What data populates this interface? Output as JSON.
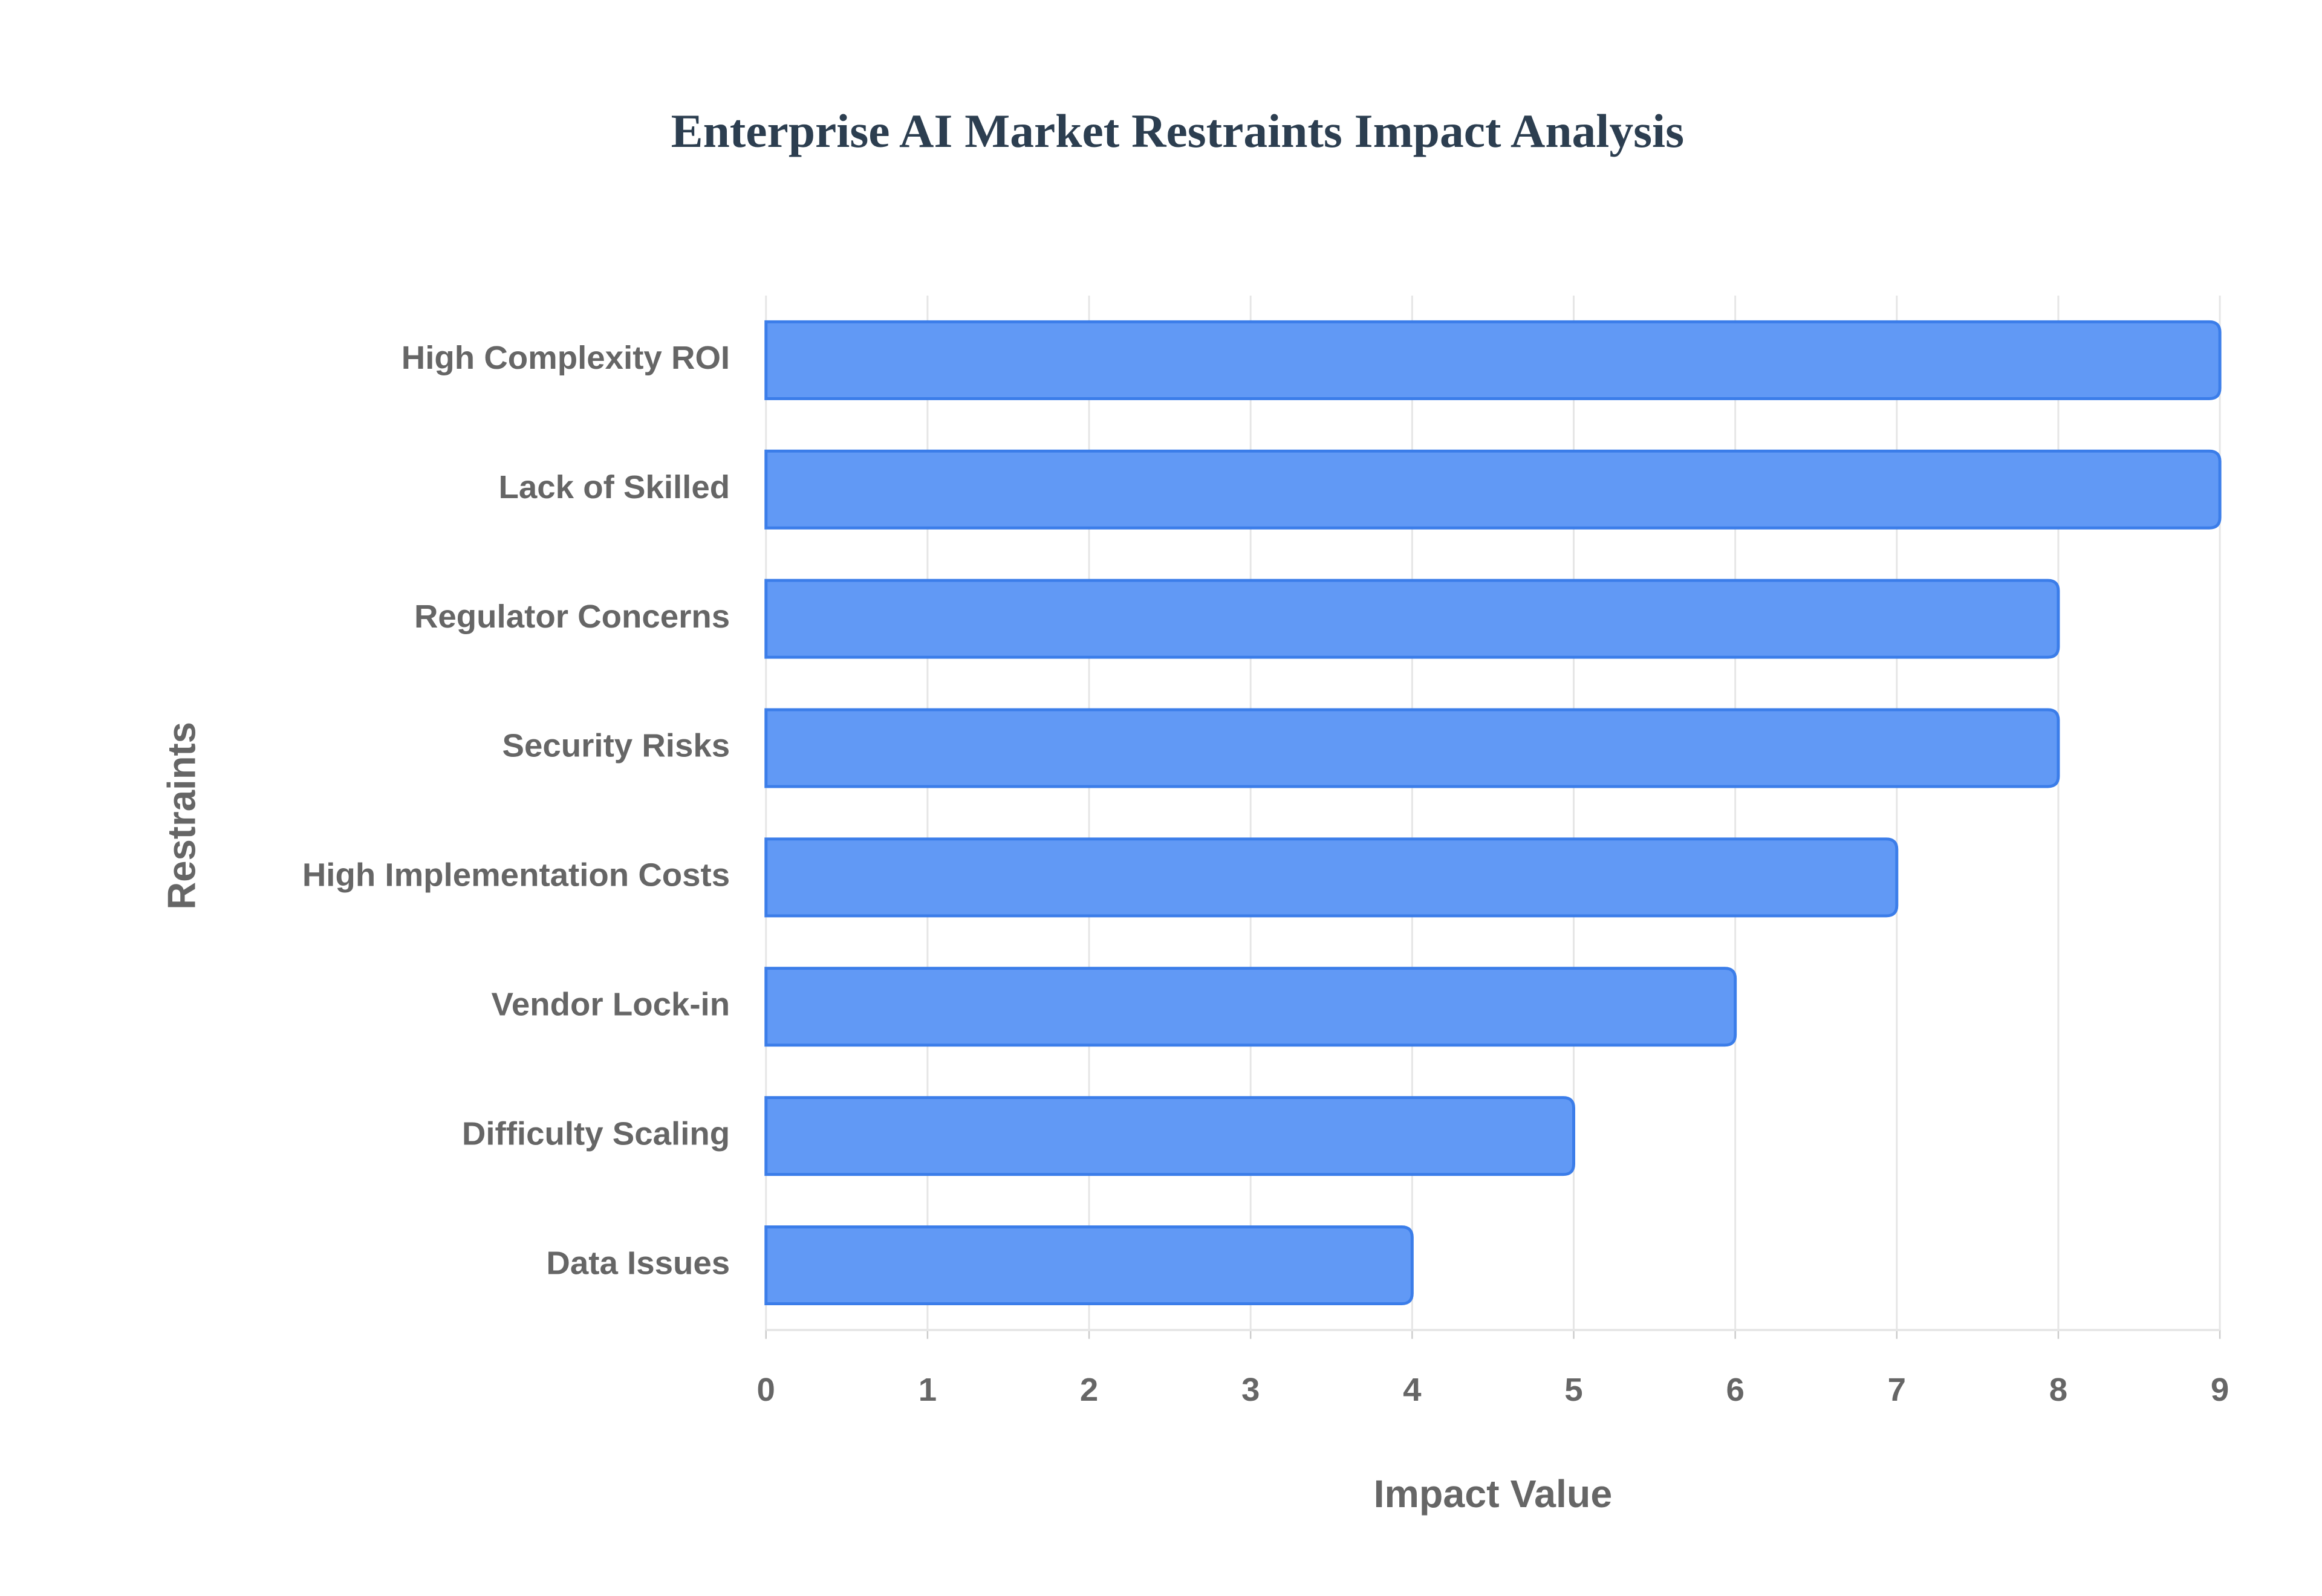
{
  "chart_data": {
    "type": "bar",
    "orientation": "horizontal",
    "title": "Enterprise AI Market Restraints Impact Analysis",
    "x_label": "Impact Value",
    "y_label": "Restraints",
    "categories": [
      "High Complexity ROI",
      "Lack of Skilled",
      "Regulator Concerns",
      "Security Risks",
      "High Implementation Costs",
      "Vendor Lock-in",
      "Difficulty Scaling",
      "Data Issues"
    ],
    "values": [
      9,
      9,
      8,
      8,
      7,
      6,
      5,
      4
    ],
    "color": "#6199f5",
    "edge_color": "#3b7de9",
    "xlim": [
      0,
      9
    ],
    "xticks": [
      0,
      1,
      2,
      3,
      4,
      5,
      6,
      7,
      8,
      9
    ],
    "grid": true
  }
}
